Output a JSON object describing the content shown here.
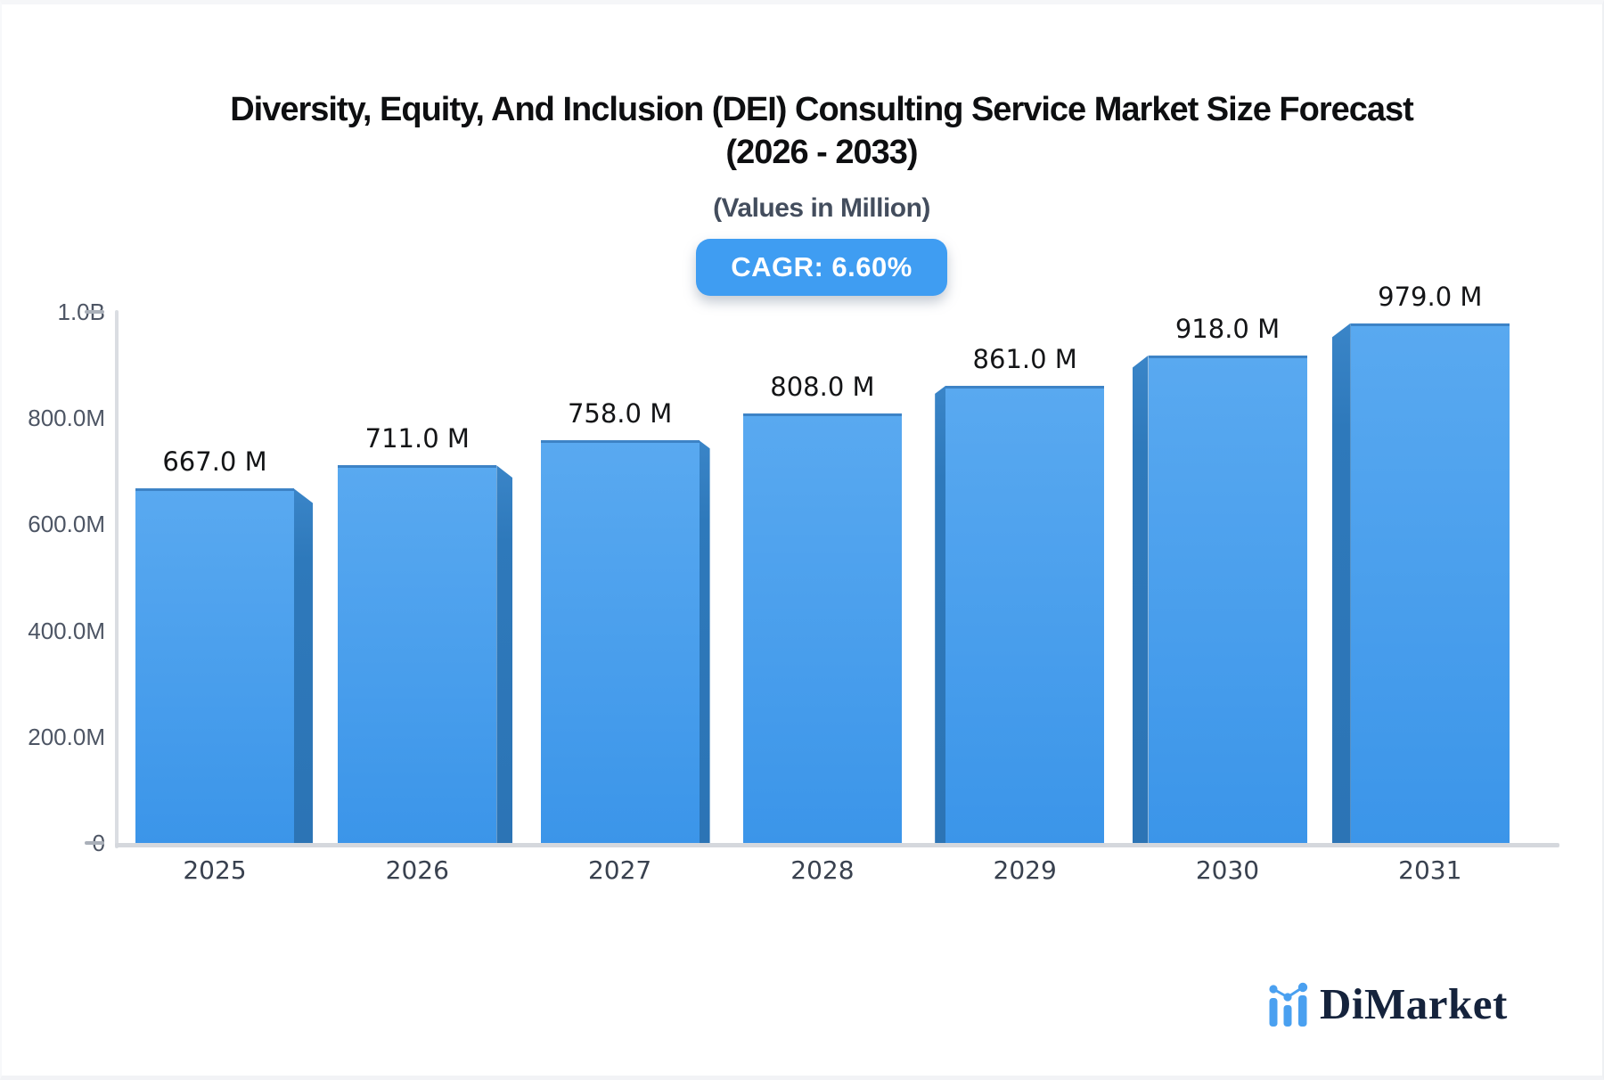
{
  "title": {
    "line1": "Diversity, Equity, And Inclusion (DEI) Consulting Service Market Size Forecast",
    "line2": "(2026 - 2033)",
    "subtitle": "(Values in Million)",
    "cagr_label": "CAGR: 6.60%"
  },
  "chart_data": {
    "type": "bar",
    "title": "Diversity, Equity, And Inclusion (DEI) Consulting Service Market Size Forecast (2026 - 2033)",
    "subtitle": "(Values in Million)",
    "cagr": "6.60%",
    "categories": [
      "2025",
      "2026",
      "2027",
      "2028",
      "2029",
      "2030",
      "2031"
    ],
    "values": [
      667,
      711,
      758,
      808,
      861,
      918,
      979
    ],
    "value_labels": [
      "667.0 M",
      "711.0 M",
      "758.0 M",
      "808.0 M",
      "861.0 M",
      "918.0 M",
      "979.0 M"
    ],
    "unit": "Million",
    "ylim": [
      0,
      1000
    ],
    "y_ticks": [
      {
        "label": "1.0B",
        "value": 1000,
        "dash": true
      },
      {
        "label": "800.0M",
        "value": 800,
        "dash": false
      },
      {
        "label": "600.0M",
        "value": 600,
        "dash": false
      },
      {
        "label": "400.0M",
        "value": 400,
        "dash": false
      },
      {
        "label": "200.0M",
        "value": 200,
        "dash": false
      },
      {
        "label": "0",
        "value": 0,
        "dash": true
      }
    ],
    "grid": false,
    "legend": "none",
    "style_3d": true,
    "colors": {
      "bar_face_top": "#59a9f0",
      "bar_face_bottom": "#3b95e9",
      "bar_top_edge": "#3d83c6",
      "bar_side": "#2e79bb",
      "axis_line": "#dadde2",
      "baseline": "#d5d8dd",
      "tick_dash": "#aab0b9",
      "y_label": "#4d5564",
      "x_label": "#39414f",
      "value_label": "#141517",
      "badge_bg": "#3f9df2",
      "badge_text": "#ffffff",
      "logo_icon": "#4aa0f0",
      "logo_text": "#15233c"
    }
  },
  "logo": {
    "text": "DiMarket",
    "icon": "mini-bar-chart-icon"
  }
}
